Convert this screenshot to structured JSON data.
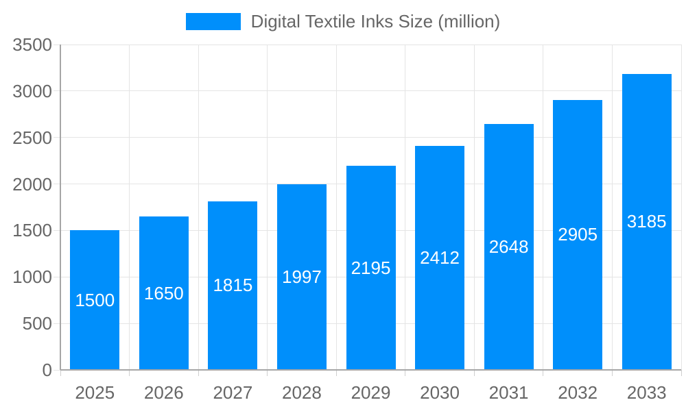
{
  "legend": {
    "label": "Digital Textile Inks Size (million)",
    "swatch_icon": "series-color-swatch"
  },
  "chart_data": {
    "type": "bar",
    "title": "Digital Textile Inks Size (million)",
    "categories": [
      "2025",
      "2026",
      "2027",
      "2028",
      "2029",
      "2030",
      "2031",
      "2032",
      "2033"
    ],
    "values": [
      1500,
      1650,
      1815,
      1997,
      2195,
      2412,
      2648,
      2905,
      3185
    ],
    "series": [
      {
        "name": "Digital Textile Inks Size (million)",
        "values": [
          1500,
          1650,
          1815,
          1997,
          2195,
          2412,
          2648,
          2905,
          3185
        ]
      }
    ],
    "xlabel": "",
    "ylabel": "",
    "ylim": [
      0,
      3500
    ],
    "yticks": [
      0,
      500,
      1000,
      1500,
      2000,
      2500,
      3000,
      3500
    ],
    "grid": true,
    "legend_position": "top",
    "value_labels": "inside-center"
  },
  "colors": {
    "bar": "#008FFB",
    "grid": "#e4e4e4",
    "axis_line": "#a6a6a6",
    "tick_mark": "#cfcfcf",
    "axis_text": "#666666",
    "value_text": "#ffffff",
    "background": "#ffffff"
  }
}
